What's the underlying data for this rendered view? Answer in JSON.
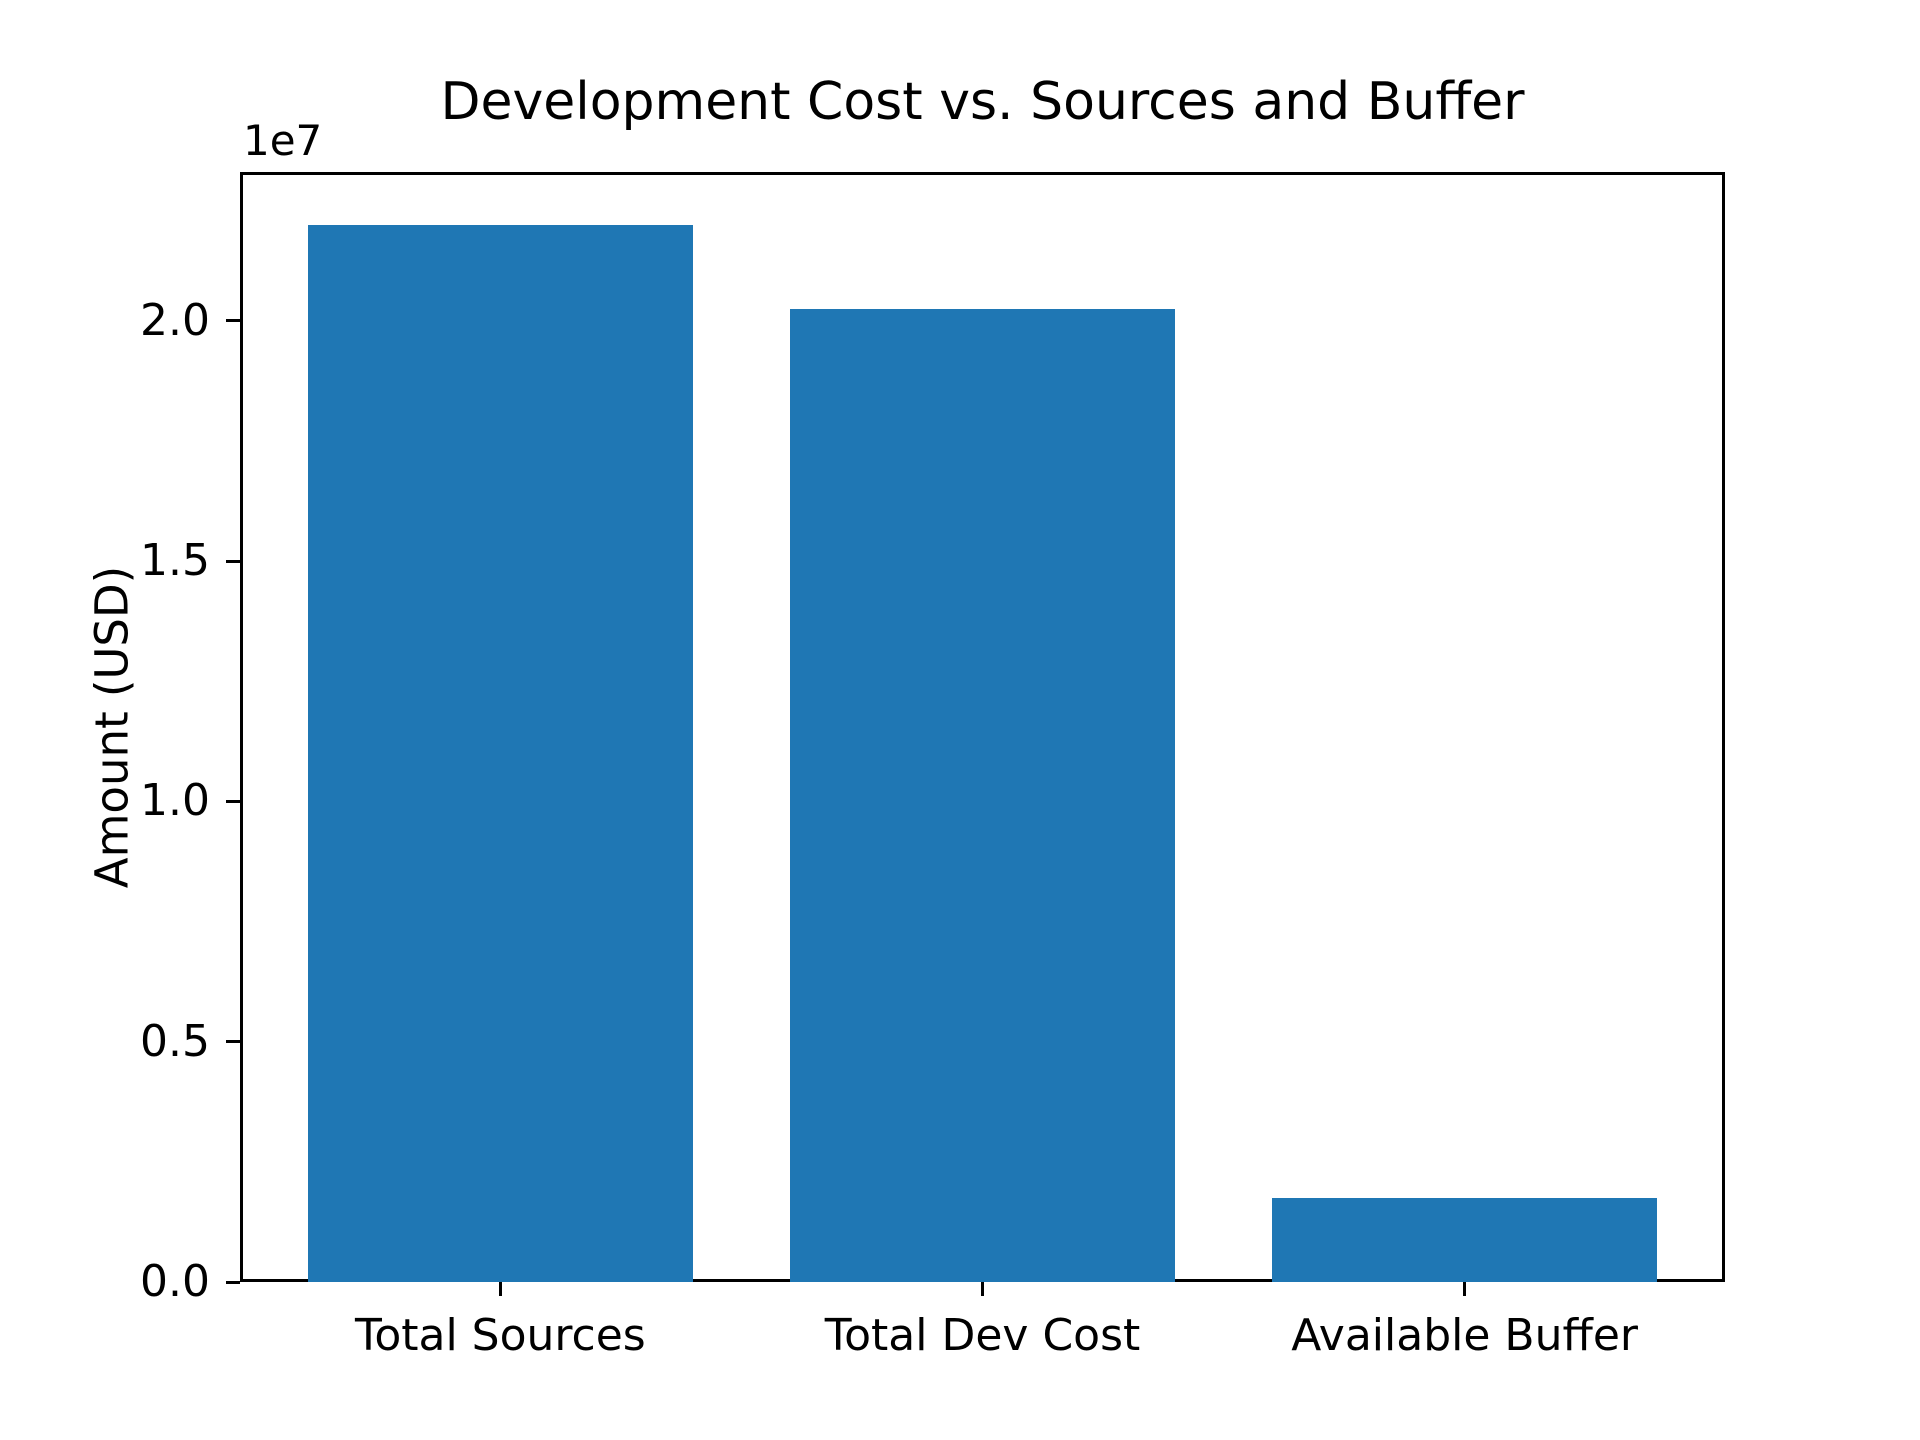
{
  "chart_data": {
    "type": "bar",
    "title": "Development Cost vs. Sources and Buffer",
    "xlabel": "",
    "ylabel": "Amount (USD)",
    "categories": [
      "Total Sources",
      "Total Dev Cost",
      "Available Buffer"
    ],
    "values": [
      22000000,
      20250000,
      1750000
    ],
    "ylim": [
      0,
      23100000
    ],
    "yticks": [
      0,
      5000000,
      10000000,
      15000000,
      20000000
    ],
    "ytick_labels": [
      "0.0",
      "0.5",
      "1.0",
      "1.5",
      "2.0"
    ],
    "offset_text": "1e7",
    "bar_color": "#1f77b4",
    "axis_color": "#000000",
    "grid": false,
    "legend": null
  }
}
